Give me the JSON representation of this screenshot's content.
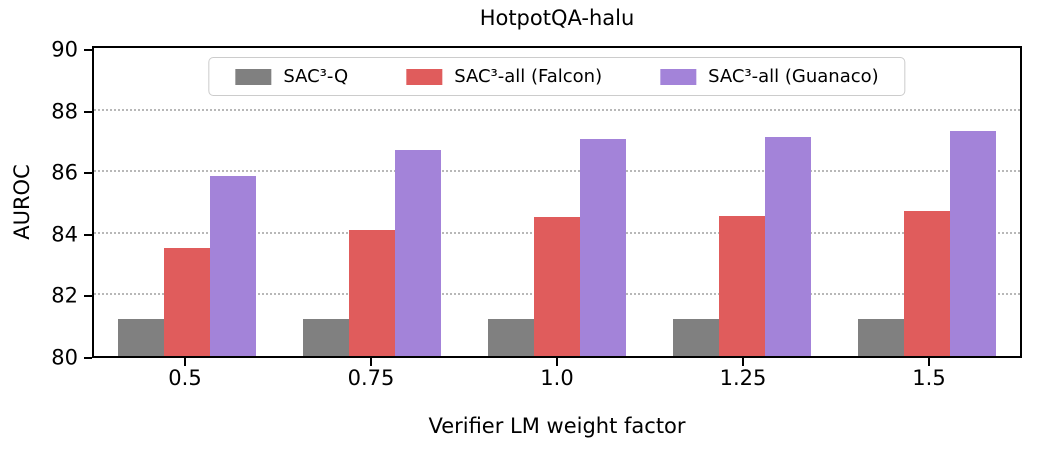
{
  "chart_data": {
    "type": "bar",
    "title": "HotpotQA-halu",
    "xlabel": "Verifier LM weight factor",
    "ylabel": "AUROC",
    "categories": [
      "0.5",
      "0.75",
      "1.0",
      "1.25",
      "1.5"
    ],
    "series": [
      {
        "name": "SAC³-Q",
        "color": "#808080",
        "values": [
          81.2,
          81.2,
          81.2,
          81.2,
          81.2
        ]
      },
      {
        "name": "SAC³-all (Falcon)",
        "color": "#e05c5c",
        "values": [
          83.5,
          84.1,
          84.5,
          84.55,
          84.7
        ]
      },
      {
        "name": "SAC³-all (Guanaco)",
        "color": "#a383d9",
        "values": [
          85.85,
          86.7,
          87.05,
          87.1,
          87.3
        ]
      }
    ],
    "ylim": [
      80,
      90
    ],
    "yticks": [
      80,
      82,
      84,
      86,
      88,
      90
    ],
    "grid_ticks": [
      82,
      84,
      86,
      88
    ],
    "grid": true,
    "legend_position": "top-center"
  }
}
